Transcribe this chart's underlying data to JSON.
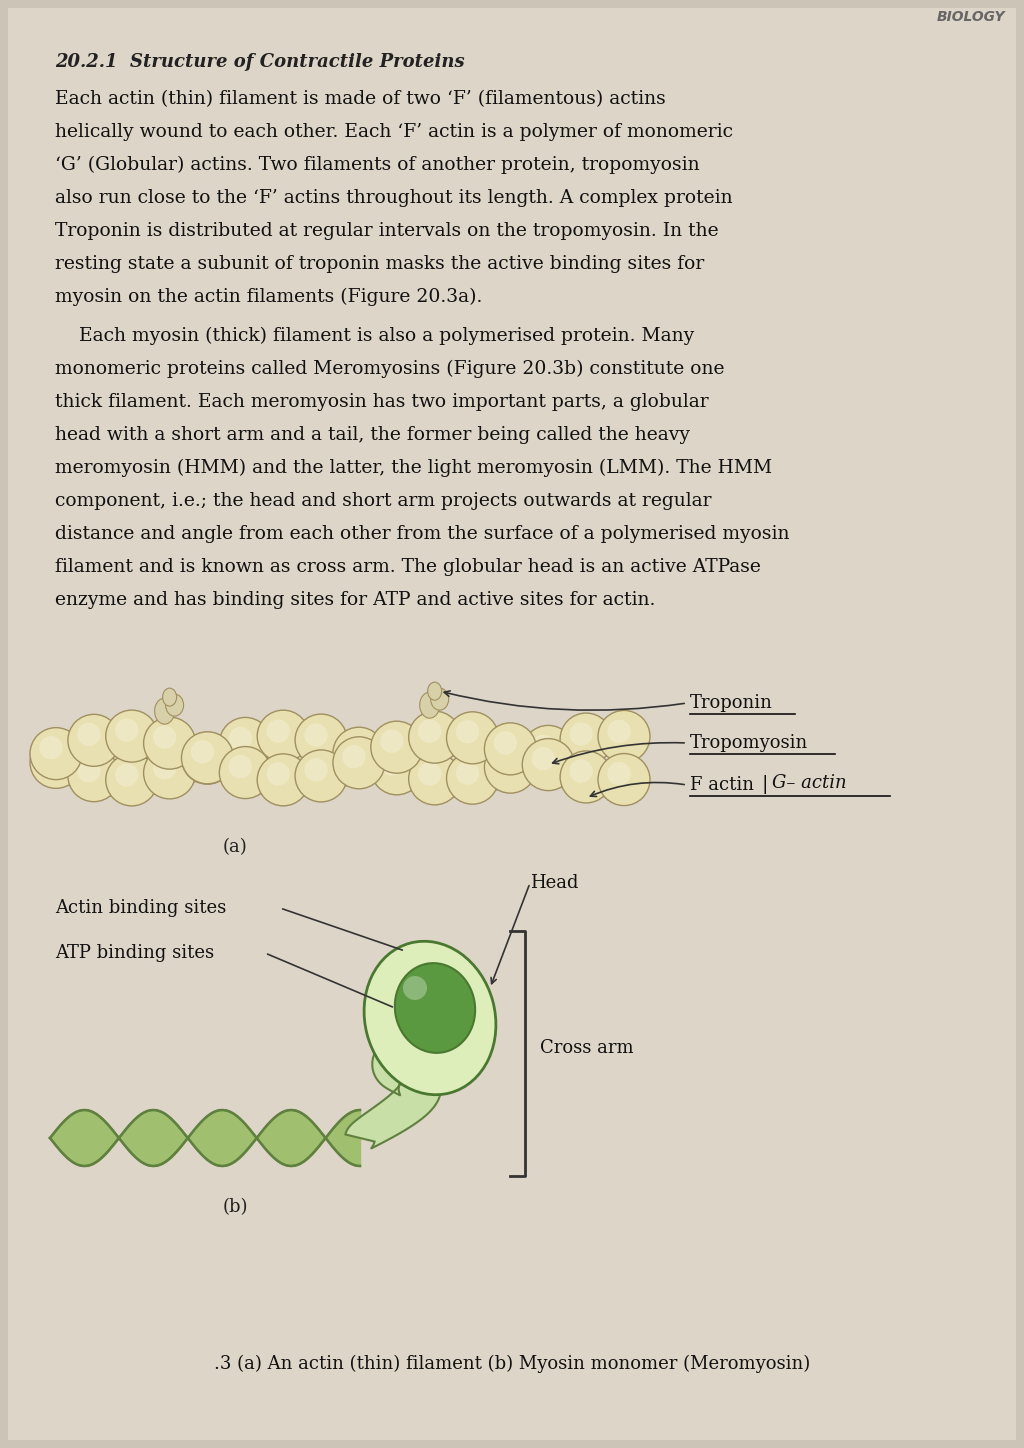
{
  "bg_color": "#cdc4b8",
  "page_bg": "#ddd5c8",
  "header_tag": "BIOLOGY",
  "title": "20.2.1  Structure of Contractile Proteins",
  "p1_lines": [
    "Each actin (thin) filament is made of two ‘F’ (filamentous) actins",
    "helically wound to each other. Each ‘F’ actin is a polymer of monomeric",
    "‘G’ (Globular) actins. Two filaments of another protein, tropomyosin",
    "also run close to the ‘F’ actins throughout its length. A complex protein",
    "Troponin is distributed at regular intervals on the tropomyosin. In the",
    "resting state a subunit of troponin masks the active binding sites for",
    "myosin on the actin filaments (Figure 20.3a)."
  ],
  "p2_lines": [
    "    Each myosin (thick) filament is also a polymerised protein. Many",
    "monomeric proteins called Meromyosins (Figure 20.3b) constitute one",
    "thick filament. Each meromyosin has two important parts, a globular",
    "head with a short arm and a tail, the former being called the heavy",
    "meromyosin (HMM) and the latter, the light meromyosin (LMM). The HMM",
    "component, i.e.; the head and short arm projects outwards at regular",
    "distance and angle from each other from the surface of a polymerised myosin",
    "filament and is known as cross arm. The globular head is an active ATPase",
    "enzyme and has binding sites for ATP and active sites for actin."
  ],
  "label_a": "(a)",
  "label_b": "(b)",
  "label_troponin": "Troponin",
  "label_tropomyosin": "Tropomyosin",
  "label_factin": "F actin",
  "label_gactin": "G– actin",
  "label_actin_binding": "Actin binding sites",
  "label_atp_binding": "ATP binding sites",
  "label_head": "Head",
  "label_cross_arm": "Cross arm",
  "caption": ".3 (a) An actin (thin) filament (b) Myosin monomer (Meromyosin)",
  "text_color": "#111111",
  "bead_outer": "#e8e0b0",
  "bead_edge": "#a09060",
  "ribbon_color": "#b07850",
  "ribbon_stripe": "#8a5030",
  "troponin_color": "#d8d0a8",
  "head_outer": "#ddeebb",
  "head_inner": "#5a9940",
  "head_edge": "#4a7830",
  "tail_fill": "#a0c070",
  "tail_edge": "#608040",
  "neck_fill": "#c8dfa8",
  "neck_edge": "#608040"
}
